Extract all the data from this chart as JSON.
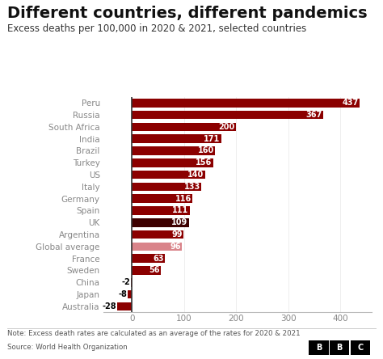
{
  "title": "Different countries, different pandemics",
  "subtitle": "Excess deaths per 100,000 in 2020 & 2021, selected countries",
  "note": "Note: Excess death rates are calculated as an average of the rates for 2020 & 2021",
  "source": "Source: World Health Organization",
  "categories": [
    "Peru",
    "Russia",
    "South Africa",
    "India",
    "Brazil",
    "Turkey",
    "US",
    "Italy",
    "Germany",
    "Spain",
    "UK",
    "Argentina",
    "Global average",
    "France",
    "Sweden",
    "China",
    "Japan",
    "Australia"
  ],
  "values": [
    437,
    367,
    200,
    171,
    160,
    156,
    140,
    133,
    116,
    111,
    109,
    99,
    96,
    63,
    56,
    -2,
    -8,
    -28
  ],
  "bar_colors": [
    "#8B0000",
    "#8B0000",
    "#8B0000",
    "#8B0000",
    "#8B0000",
    "#8B0000",
    "#8B0000",
    "#8B0000",
    "#8B0000",
    "#8B0000",
    "#3d0000",
    "#8B0000",
    "#d9848a",
    "#8B0000",
    "#8B0000",
    "#8B0000",
    "#8B0000",
    "#8B0000"
  ],
  "label_color_inside": "#ffffff",
  "label_color_outside": "#000000",
  "background_color": "#ffffff",
  "title_fontsize": 14,
  "subtitle_fontsize": 8.5,
  "tick_label_color": "#888888",
  "axis_label_color": "#888888",
  "xlim": [
    -55,
    460
  ],
  "xticks": [
    0,
    100,
    200,
    300,
    400
  ]
}
